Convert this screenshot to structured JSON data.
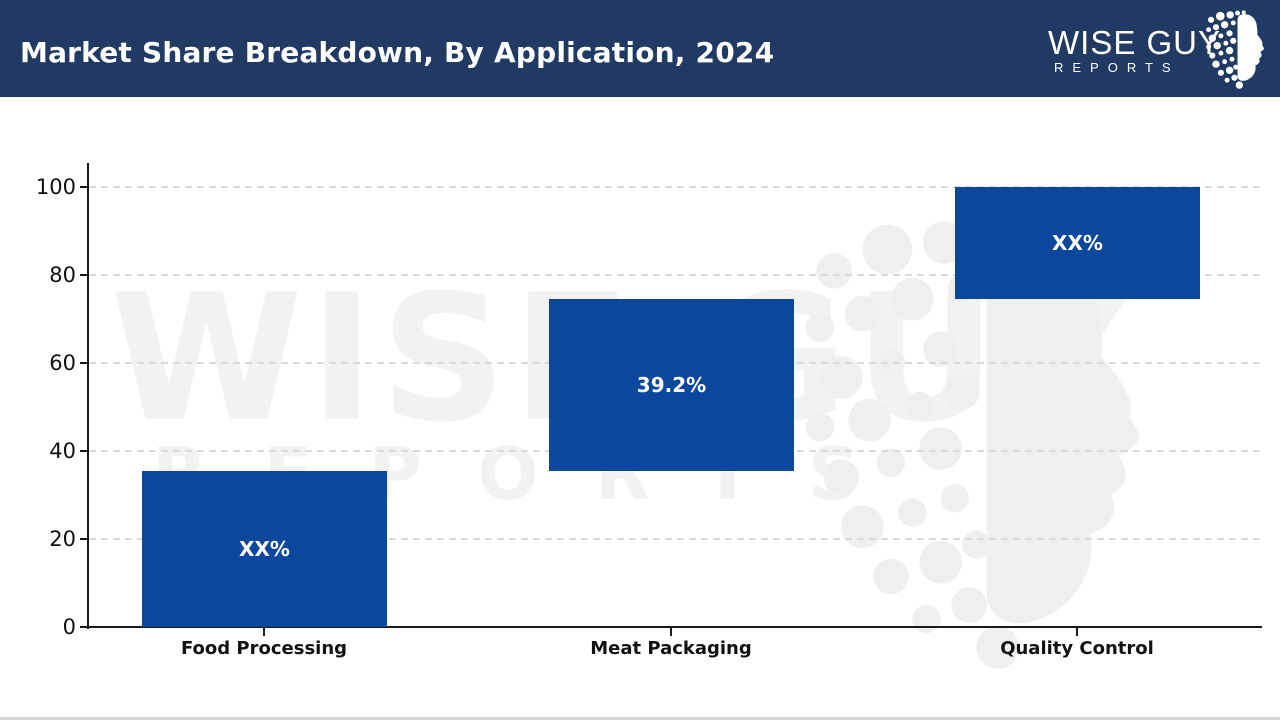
{
  "header": {
    "title": "Market Share Breakdown, By Application, 2024",
    "logo": {
      "line1": "WISE GUY",
      "line2": "REPORTS"
    }
  },
  "watermark": {
    "line1": "WISE GUY",
    "line2": "REPORTS"
  },
  "chart_data": {
    "type": "bar",
    "variant": "waterfall-floating-bars",
    "title": "Market Share Breakdown, By Application, 2024",
    "categories": [
      "Food Processing",
      "Meat Packaging",
      "Quality Control"
    ],
    "bars": [
      {
        "category": "Food Processing",
        "start": 0,
        "end": 35.4,
        "label": "XX%"
      },
      {
        "category": "Meat Packaging",
        "start": 35.4,
        "end": 74.6,
        "label": "39.2%"
      },
      {
        "category": "Quality Control",
        "start": 74.6,
        "end": 100,
        "label": "XX%"
      }
    ],
    "yticks": [
      0,
      20,
      40,
      60,
      80,
      100
    ],
    "ylim": [
      0,
      100
    ],
    "xlabel": "",
    "ylabel": "",
    "grid": "horizontal-dashed",
    "legend": "none",
    "colors": {
      "bar": "#0a479d",
      "header_bg": "#203a64",
      "grid": "#d9d9d9",
      "axis": "#1a1a1a",
      "bar_label": "#ffffff",
      "watermark": "#f2f2f2",
      "bottom_rule": "#d6d6d6"
    }
  }
}
